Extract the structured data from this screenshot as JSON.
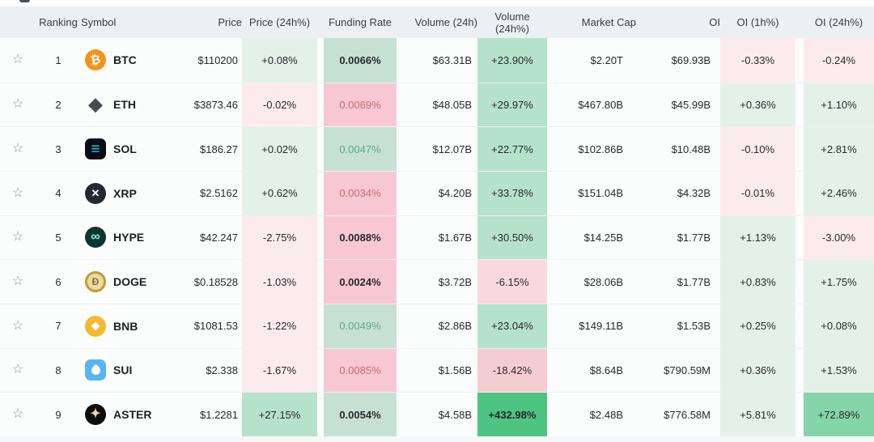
{
  "header": {
    "cols": [
      "Ranking",
      "Symbol",
      "Price",
      "Price (24h%)",
      "Funding Rate",
      "Volume (24h)",
      "Volume (24h%)",
      "Market Cap",
      "OI",
      "OI (1h%)",
      "OI (24h%)"
    ]
  },
  "icons": {
    "star_glyph": "☆"
  },
  "colors": {
    "g1": "#e4f1e9",
    "g2": "#b5e2cb",
    "g3": "#4ec482",
    "g4": "#85d5aa",
    "p1": "#fcebee",
    "p2": "#f9d9de",
    "p3": "#f6ccd3",
    "fg": "#c6e1d4",
    "fp": "#f8c8d2",
    "dark": "#27292c",
    "red": "#c96a76",
    "green": "#5ea88c"
  },
  "rows": [
    {
      "rank": "1",
      "symbol": "BTC",
      "icon": {
        "shape": "circle",
        "bg": "#f7931a",
        "glyph": "₿",
        "fg": "#ffffff",
        "size": 15,
        "rotate": -10
      },
      "price": "$110200",
      "price_24h": {
        "text": "+0.08%",
        "bg": "g1"
      },
      "funding": {
        "text": "0.0066%",
        "bg": "fg",
        "color": "dark",
        "bold": true
      },
      "volume": "$63.31B",
      "volume_24h": {
        "text": "+23.90%",
        "bg": "g2"
      },
      "market_cap": "$2.20T",
      "oi": "$69.93B",
      "oi_1h": {
        "text": "-0.33%",
        "bg": "p1"
      },
      "oi_24h": {
        "text": "-0.24%",
        "bg": "p1"
      }
    },
    {
      "rank": "2",
      "symbol": "ETH",
      "icon": {
        "shape": "circle",
        "bg": "transparent",
        "glyph": "◆",
        "fg": "#474c54",
        "size": 22
      },
      "price": "$3873.46",
      "price_24h": {
        "text": "-0.02%",
        "bg": "p1"
      },
      "funding": {
        "text": "0.0069%",
        "bg": "fp",
        "color": "red"
      },
      "volume": "$48.05B",
      "volume_24h": {
        "text": "+29.97%",
        "bg": "g2"
      },
      "market_cap": "$467.80B",
      "oi": "$45.99B",
      "oi_1h": {
        "text": "+0.36%",
        "bg": "g1"
      },
      "oi_24h": {
        "text": "+1.10%",
        "bg": "g1"
      }
    },
    {
      "rank": "3",
      "symbol": "SOL",
      "icon": {
        "shape": "rounded",
        "bg": "#0c0c14",
        "glyph": "≡",
        "size": 19,
        "grad": [
          "#00ffa3",
          "#03e1ff",
          "#dc1fff"
        ]
      },
      "price": "$186.27",
      "price_24h": {
        "text": "+0.02%",
        "bg": "g1"
      },
      "funding": {
        "text": "0.0047%",
        "bg": "fg",
        "color": "green"
      },
      "volume": "$12.07B",
      "volume_24h": {
        "text": "+22.77%",
        "bg": "g2"
      },
      "market_cap": "$102.86B",
      "oi": "$10.48B",
      "oi_1h": {
        "text": "-0.10%",
        "bg": "p1"
      },
      "oi_24h": {
        "text": "+2.81%",
        "bg": "g1"
      }
    },
    {
      "rank": "4",
      "symbol": "XRP",
      "icon": {
        "shape": "circle",
        "bg": "#23292f",
        "glyph": "✕",
        "fg": "#ffffff",
        "size": 13
      },
      "price": "$2.5162",
      "price_24h": {
        "text": "+0.62%",
        "bg": "g1"
      },
      "funding": {
        "text": "0.0034%",
        "bg": "fp",
        "color": "red"
      },
      "volume": "$4.20B",
      "volume_24h": {
        "text": "+33.78%",
        "bg": "g2"
      },
      "market_cap": "$151.04B",
      "oi": "$4.32B",
      "oi_1h": {
        "text": "-0.01%",
        "bg": "p1"
      },
      "oi_24h": {
        "text": "+2.46%",
        "bg": "g1"
      }
    },
    {
      "rank": "5",
      "symbol": "HYPE",
      "icon": {
        "shape": "circle",
        "bg": "#0d352f",
        "glyph": "∞",
        "fg": "#8bf2d2",
        "size": 16
      },
      "price": "$42.247",
      "price_24h": {
        "text": "-2.75%",
        "bg": "p1"
      },
      "funding": {
        "text": "0.0088%",
        "bg": "fp",
        "color": "dark",
        "bold": true
      },
      "volume": "$1.67B",
      "volume_24h": {
        "text": "+30.50%",
        "bg": "g2"
      },
      "market_cap": "$14.25B",
      "oi": "$1.77B",
      "oi_1h": {
        "text": "+1.13%",
        "bg": "g1"
      },
      "oi_24h": {
        "text": "-3.00%",
        "bg": "p1"
      }
    },
    {
      "rank": "6",
      "symbol": "DOGE",
      "icon": {
        "shape": "circle",
        "bg": "#e8d9a6",
        "border": "#bd9f35",
        "glyph": "Ð",
        "fg": "#887024",
        "size": 12
      },
      "price": "$0.18528",
      "price_24h": {
        "text": "-1.03%",
        "bg": "p1"
      },
      "funding": {
        "text": "0.0024%",
        "bg": "fp",
        "color": "dark",
        "bold": true
      },
      "volume": "$3.72B",
      "volume_24h": {
        "text": "-6.15%",
        "bg": "p2"
      },
      "market_cap": "$28.06B",
      "oi": "$1.77B",
      "oi_1h": {
        "text": "+0.83%",
        "bg": "g1"
      },
      "oi_24h": {
        "text": "+1.75%",
        "bg": "g1"
      }
    },
    {
      "rank": "7",
      "symbol": "BNB",
      "icon": {
        "shape": "circle",
        "bg": "#f3ba2f",
        "glyph": "❖",
        "fg": "#ffffff",
        "size": 14
      },
      "price": "$1081.53",
      "price_24h": {
        "text": "-1.22%",
        "bg": "p1"
      },
      "funding": {
        "text": "0.0049%",
        "bg": "fg",
        "color": "green"
      },
      "volume": "$2.86B",
      "volume_24h": {
        "text": "+23.04%",
        "bg": "g2"
      },
      "market_cap": "$149.11B",
      "oi": "$1.53B",
      "oi_1h": {
        "text": "+0.25%",
        "bg": "g1"
      },
      "oi_24h": {
        "text": "+0.08%",
        "bg": "g1"
      }
    },
    {
      "rank": "8",
      "symbol": "SUI",
      "icon": {
        "shape": "rounded",
        "bg": "#58b4ec",
        "drop": true
      },
      "price": "$2.338",
      "price_24h": {
        "text": "-1.67%",
        "bg": "p1"
      },
      "funding": {
        "text": "0.0085%",
        "bg": "fp",
        "color": "red"
      },
      "volume": "$1.56B",
      "volume_24h": {
        "text": "-18.42%",
        "bg": "p3"
      },
      "market_cap": "$8.64B",
      "oi": "$790.59M",
      "oi_1h": {
        "text": "+0.36%",
        "bg": "g1"
      },
      "oi_24h": {
        "text": "+1.53%",
        "bg": "g1"
      }
    },
    {
      "rank": "9",
      "symbol": "ASTER",
      "icon": {
        "shape": "circle",
        "bg": "#0d0d0d",
        "glyph": "✦",
        "fg": "#ead9ab",
        "size": 16
      },
      "price": "$1.2281",
      "price_24h": {
        "text": "+27.15%",
        "bg": "g2"
      },
      "funding": {
        "text": "0.0054%",
        "bg": "fg",
        "color": "dark",
        "bold": true
      },
      "volume": "$4.58B",
      "volume_24h": {
        "text": "+432.98%",
        "bg": "g3",
        "bold": true
      },
      "market_cap": "$2.48B",
      "oi": "$776.58M",
      "oi_1h": {
        "text": "+5.81%",
        "bg": "g1"
      },
      "oi_24h": {
        "text": "+72.89%",
        "bg": "g4"
      }
    }
  ]
}
